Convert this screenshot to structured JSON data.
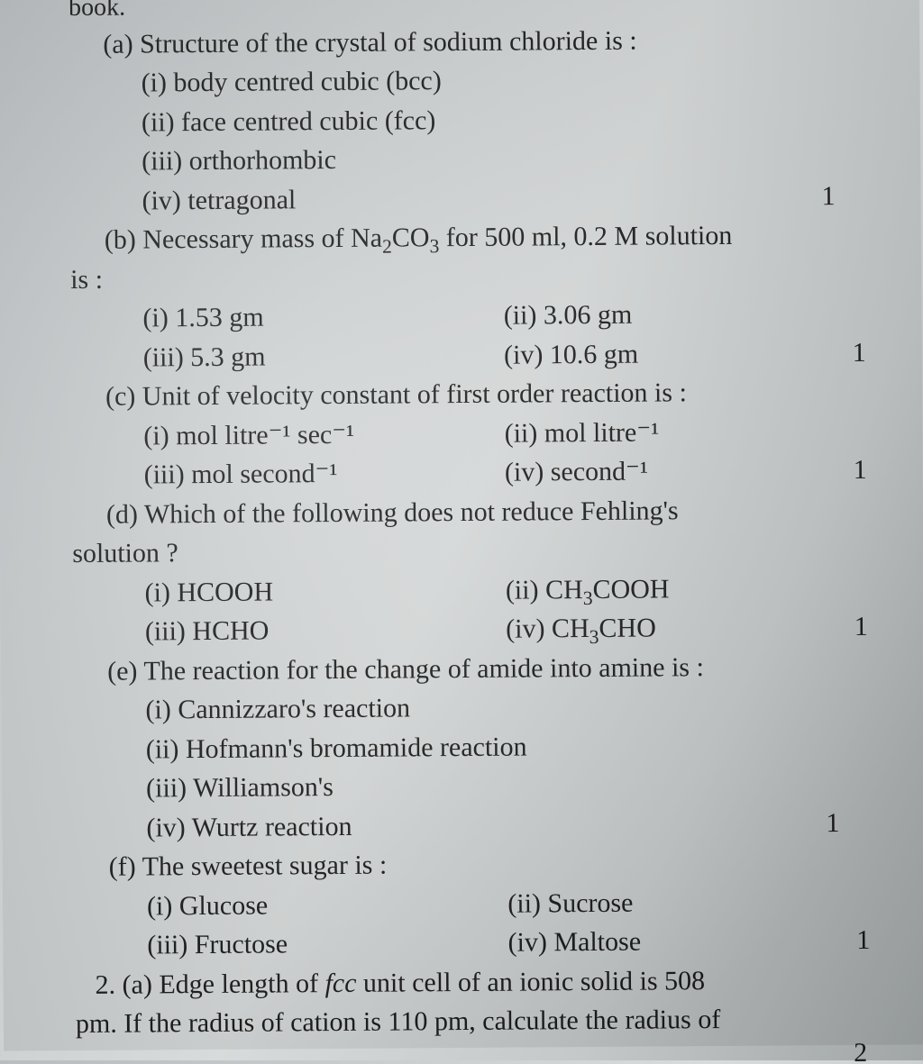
{
  "top_cut": "book.",
  "q_a": {
    "prompt": "(a) Structure of the crystal of sodium chloride is :",
    "opts": [
      "(i) body centred cubic (bcc)",
      "(ii) face centred cubic (fcc)",
      "(iii) orthorhombic",
      "(iv) tetragonal"
    ],
    "mark": "1"
  },
  "q_b": {
    "prompt_pre": "(b) Necessary mass of Na",
    "prompt_sub1": "2",
    "prompt_mid": "CO",
    "prompt_sub2": "3",
    "prompt_post": " for 500 ml, 0.2 M solution",
    "is": "is :",
    "opts_left": [
      "(i) 1.53 gm",
      "(iii) 5.3 gm"
    ],
    "opts_right": [
      "(ii) 3.06 gm",
      "(iv) 10.6 gm"
    ],
    "mark": "1"
  },
  "q_c": {
    "prompt": "(c) Unit of velocity constant of first order reaction is :",
    "opts_left": [
      "(i) mol litre⁻¹ sec⁻¹",
      "(iii) mol second⁻¹"
    ],
    "opts_right": [
      "(ii) mol litre⁻¹",
      "(iv) second⁻¹"
    ],
    "mark": "1"
  },
  "q_d": {
    "prompt": "(d) Which of the following does not reduce Fehling's",
    "prompt2": "solution ?",
    "opts_left": [
      "(i) HCOOH",
      "(iii) HCHO"
    ],
    "opts_right_1_pre": "(ii) CH",
    "opts_right_1_sub": "3",
    "opts_right_1_post": "COOH",
    "opts_right_2_pre": "(iv) CH",
    "opts_right_2_sub": "3",
    "opts_right_2_post": "CHO",
    "mark": "1"
  },
  "q_e": {
    "prompt": "(e) The reaction for the change of amide into amine is :",
    "opts": [
      "(i) Cannizzaro's reaction",
      "(ii) Hofmann's bromamide reaction",
      "(iii) Williamson's",
      "(iv) Wurtz reaction"
    ],
    "mark": "1"
  },
  "q_f": {
    "prompt": "(f) The sweetest sugar is :",
    "opts_left": [
      "(i) Glucose",
      "(iii) Fructose"
    ],
    "opts_right": [
      "(ii) Sucrose",
      "(iv) Maltose"
    ],
    "mark": "1"
  },
  "q2": {
    "line1_pre": "2. (a) Edge length of ",
    "line1_ital": "fcc",
    "line1_post": " unit cell of an ionic solid is 508",
    "line2": "pm. If the radius of cation is 110 pm, calculate the radius of",
    "frag": "2"
  }
}
